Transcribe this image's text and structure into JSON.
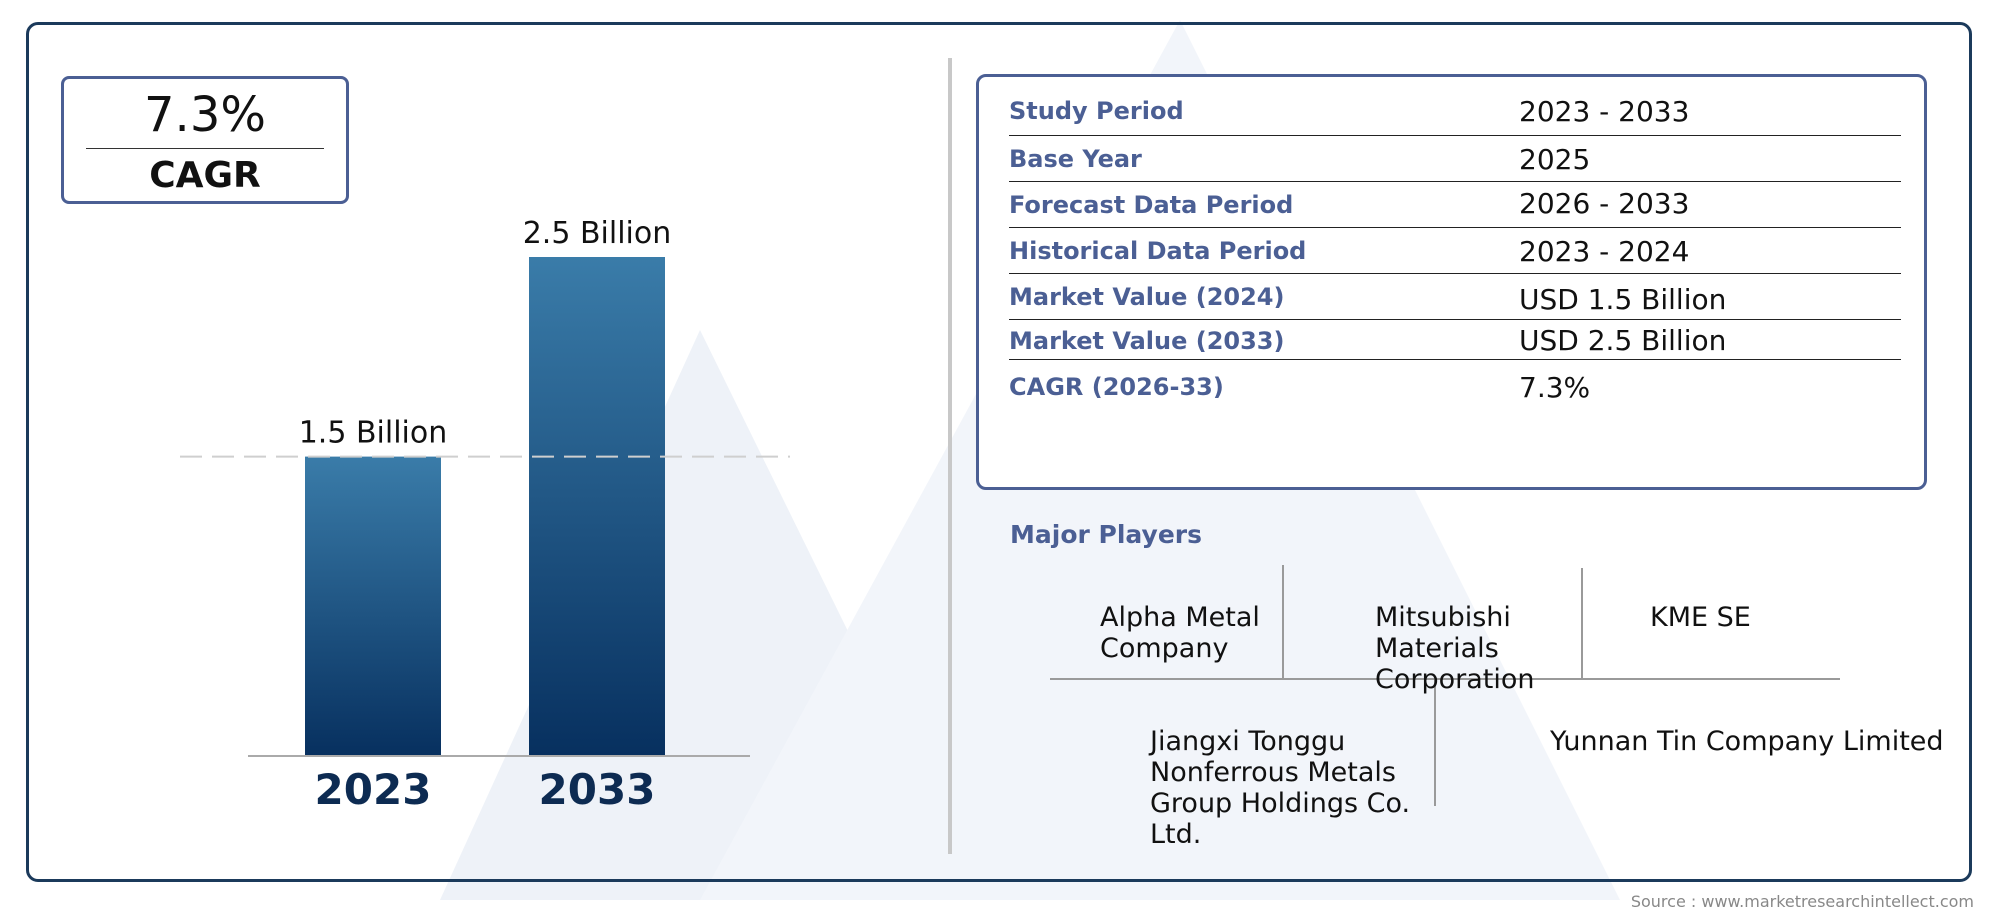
{
  "cagr_badge": {
    "value": "7.3%",
    "label": "CAGR"
  },
  "chart_data": {
    "type": "bar",
    "categories": [
      "2023",
      "2033"
    ],
    "values": [
      1.5,
      2.5
    ],
    "value_labels": [
      "1.5 Billion",
      "2.5 Billion"
    ],
    "unit": "Billion",
    "title": "",
    "xlabel": "",
    "ylabel": "",
    "ylim": [
      0,
      2.5
    ],
    "grid": false,
    "reference_line_value": 1.5,
    "colors": {
      "bar_top": "#3a7ca9",
      "bar_bottom": "#07305f",
      "year_label": "#0d2b52"
    }
  },
  "summary": {
    "rows": [
      {
        "label": "Study Period",
        "value": "2023 - 2033"
      },
      {
        "label": "Base Year",
        "value": "2025"
      },
      {
        "label": "Forecast Data Period",
        "value": "2026 - 2033"
      },
      {
        "label": "Historical Data Period",
        "value": "2023 - 2024"
      },
      {
        "label": "Market Value (2024)",
        "value": "USD 1.5 Billion"
      },
      {
        "label": "Market Value (2033)",
        "value": "USD 2.5 Billion"
      },
      {
        "label": "CAGR (2026-33)",
        "value": "7.3%"
      }
    ]
  },
  "major_players": {
    "title": "Major Players",
    "players": [
      {
        "name": "Alpha Metal Company"
      },
      {
        "name": "Mitsubishi Materials Corporation"
      },
      {
        "name": "KME SE"
      },
      {
        "name": "Jiangxi Tonggu Nonferrous Metals Group Holdings Co. Ltd."
      },
      {
        "name": "Yunnan Tin Company Limited"
      }
    ]
  },
  "source": "Source : www.marketresearchintellect.com",
  "colors": {
    "frame": "#1b3a5b",
    "accent": "#4b5f94",
    "watermark": "#eef2f8"
  }
}
